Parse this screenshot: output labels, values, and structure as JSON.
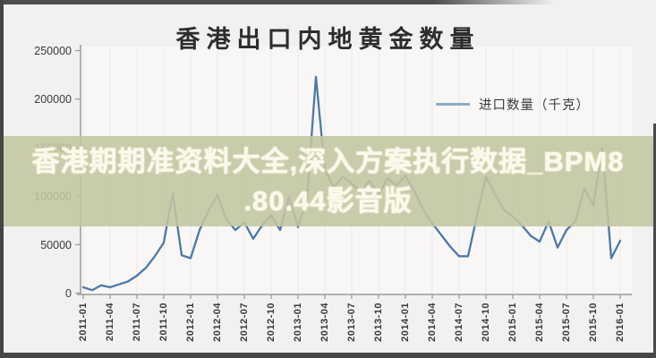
{
  "chart_data": {
    "type": "line",
    "title": "香港出口内地黄金数量",
    "legend": "进口数量（千克）",
    "ylim": [
      0,
      250000
    ],
    "y_ticks": [
      0,
      50000,
      100000,
      150000,
      200000,
      250000
    ],
    "y_tick_labels": [
      "0",
      "50000",
      "100000",
      "150000",
      "200000",
      "250000"
    ],
    "x_tick_labels": [
      "2011-01",
      "2011-04",
      "2011-07",
      "2011-10",
      "2012-01",
      "2012-04",
      "2012-07",
      "2012-10",
      "2013-01",
      "2013-04",
      "2013-07",
      "2013-10",
      "2014-01",
      "2014-04",
      "2014-07",
      "2014-10",
      "2015-01",
      "2015-04",
      "2015-07",
      "2015-10",
      "2016-01"
    ],
    "x": [
      "2011-01",
      "2011-02",
      "2011-03",
      "2011-04",
      "2011-05",
      "2011-06",
      "2011-07",
      "2011-08",
      "2011-09",
      "2011-10",
      "2011-11",
      "2011-12",
      "2012-01",
      "2012-02",
      "2012-03",
      "2012-04",
      "2012-05",
      "2012-06",
      "2012-07",
      "2012-08",
      "2012-09",
      "2012-10",
      "2012-11",
      "2012-12",
      "2013-01",
      "2013-02",
      "2013-03",
      "2013-04",
      "2013-05",
      "2013-06",
      "2013-07",
      "2013-08",
      "2013-09",
      "2013-10",
      "2013-11",
      "2013-12",
      "2014-01",
      "2014-02",
      "2014-03",
      "2014-04",
      "2014-05",
      "2014-06",
      "2014-07",
      "2014-08",
      "2014-09",
      "2014-10",
      "2014-11",
      "2014-12",
      "2015-01",
      "2015-02",
      "2015-03",
      "2015-04",
      "2015-05",
      "2015-06",
      "2015-07",
      "2015-08",
      "2015-09",
      "2015-10",
      "2015-11",
      "2015-12",
      "2016-01"
    ],
    "values": [
      6000,
      3000,
      8000,
      6000,
      9000,
      12000,
      18000,
      26000,
      38000,
      52000,
      103000,
      39000,
      36000,
      65000,
      85000,
      101000,
      76000,
      65000,
      73000,
      56000,
      70000,
      80000,
      65000,
      99000,
      68000,
      97000,
      223000,
      127000,
      109000,
      120000,
      113000,
      104000,
      116000,
      102000,
      118000,
      111000,
      121000,
      105000,
      86000,
      72000,
      60000,
      48000,
      38000,
      38000,
      80000,
      120000,
      102000,
      86000,
      79000,
      70000,
      59000,
      53000,
      74000,
      47000,
      65000,
      74000,
      108000,
      90000,
      150000,
      36000,
      54000
    ],
    "line_color": "#4c79a6",
    "legend_swatch_color": "#8badc8",
    "axis_color": "#9a9a9a",
    "gridline_color": "#eae8e4",
    "tick_label_color": "#3a3a3a",
    "grid": "faint-vertical",
    "legend_position": "upper-right"
  },
  "overlay": {
    "line1": "香港期期准资料大全,深入方案执行数据_BPM8",
    "line2": ".80.44影音版",
    "band_color": "#c2c6a0",
    "text_color": "#fbf8ec"
  }
}
